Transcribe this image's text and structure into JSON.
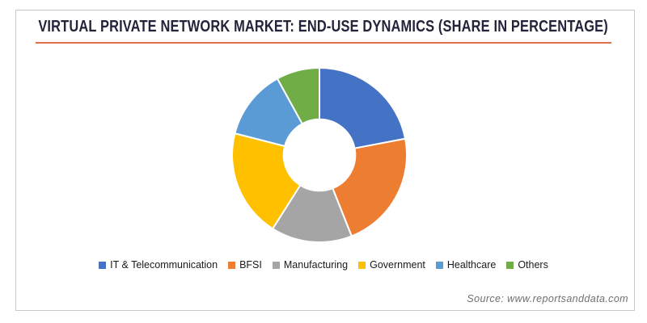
{
  "title": "VIRTUAL PRIVATE NETWORK MARKET: END-USE DYNAMICS (SHARE IN PERCENTAGE)",
  "source_note": "Source: www.reportsanddata.com",
  "colors": {
    "title_text": "#23233a",
    "title_underline": "#e0704a",
    "frame_border": "#c9c9c9",
    "legend_text": "#1a1a1a",
    "source_text": "#6f6f6f",
    "slice_separator": "#ffffff"
  },
  "chart_data": {
    "type": "pie",
    "subtype": "donut",
    "title": "VIRTUAL PRIVATE NETWORK MARKET: END-USE DYNAMICS (SHARE IN PERCENTAGE)",
    "categories": [
      "IT & Telecommunication",
      "BFSI",
      "Manufacturing",
      "Government",
      "Healthcare",
      "Others"
    ],
    "values": [
      22,
      22,
      15,
      20,
      13,
      8
    ],
    "unit": "percent",
    "colors": [
      "#4472C4",
      "#ED7D31",
      "#A5A5A5",
      "#FFC000",
      "#5B9BD5",
      "#70AD47"
    ],
    "start_angle_deg": 0,
    "direction": "clockwise",
    "inner_radius_ratio": 0.41,
    "legend_position": "bottom",
    "data_labels": "none"
  }
}
